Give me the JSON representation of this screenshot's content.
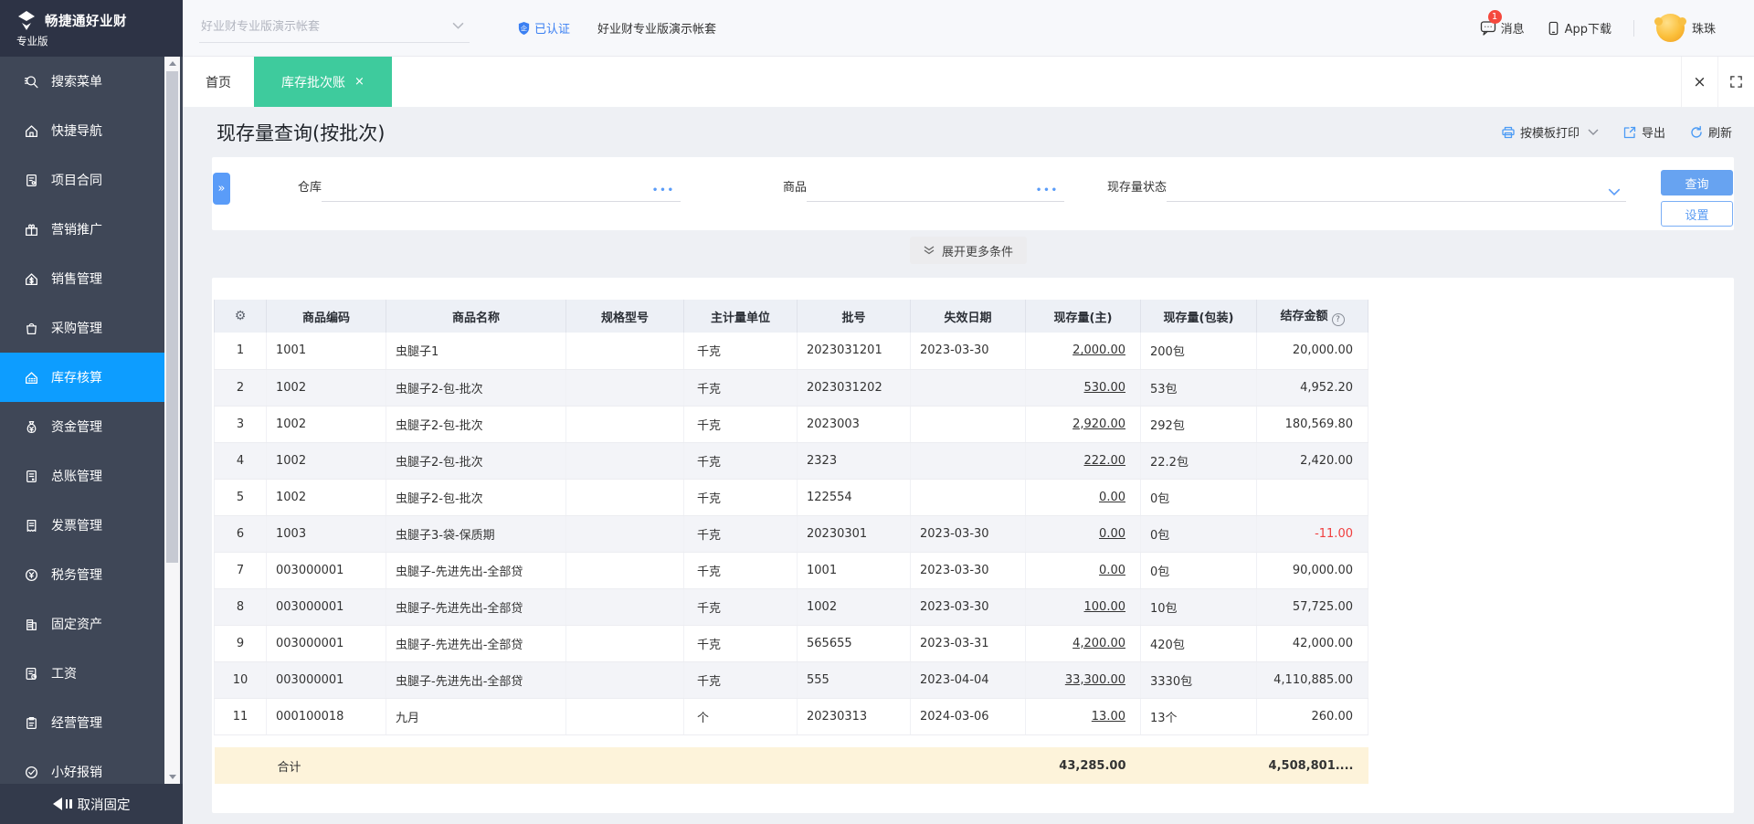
{
  "app": {
    "logo_title": "畅捷通好业财",
    "logo_subtitle": "专业版",
    "unpin_label": "取消固定"
  },
  "glyphs": {
    "close": "×",
    "expand_collapse": "»",
    "more_dots": "•••",
    "gear": "⚙",
    "refresh": "↻"
  },
  "topbar": {
    "account_selector": "好业财专业版演示帐套",
    "certified_label": "已认证",
    "account_name": "好业财专业版演示帐套",
    "messages_label": "消息",
    "messages_badge": "1",
    "app_download_label": "App下载",
    "username": "珠珠"
  },
  "tabs": {
    "home_label": "首页",
    "active_label": "库存批次账"
  },
  "page": {
    "title": "现存量查询(按批次)",
    "print_label": "按模板打印",
    "export_label": "导出",
    "refresh_label": "刷新"
  },
  "filters": {
    "warehouse_label": "仓库",
    "product_label": "商品",
    "stock_status_label": "现存量状态",
    "expand_more_label": "展开更多条件",
    "query_label": "查询",
    "settings_label": "设置"
  },
  "sidebar": {
    "items": [
      {
        "label": "搜索菜单",
        "icon": "search-icon",
        "active": false
      },
      {
        "label": "快捷导航",
        "icon": "home-icon",
        "active": false
      },
      {
        "label": "项目合同",
        "icon": "contract-icon",
        "active": false
      },
      {
        "label": "营销推广",
        "icon": "gift-icon",
        "active": false
      },
      {
        "label": "销售管理",
        "icon": "sales-icon",
        "active": false
      },
      {
        "label": "采购管理",
        "icon": "purchase-bag-icon",
        "active": false
      },
      {
        "label": "库存核算",
        "icon": "warehouse-icon",
        "active": true
      },
      {
        "label": "资金管理",
        "icon": "money-bag-icon",
        "active": false
      },
      {
        "label": "总账管理",
        "icon": "ledger-icon",
        "active": false
      },
      {
        "label": "发票管理",
        "icon": "invoice-icon",
        "active": false
      },
      {
        "label": "税务管理",
        "icon": "tax-icon",
        "active": false
      },
      {
        "label": "固定资产",
        "icon": "building-icon",
        "active": false
      },
      {
        "label": "工资",
        "icon": "salary-icon",
        "active": false
      },
      {
        "label": "经营管理",
        "icon": "clipboard-icon",
        "active": false
      },
      {
        "label": "小好报销",
        "icon": "reimburse-icon",
        "active": false
      }
    ]
  },
  "table": {
    "columns": [
      {
        "label": "商品编码",
        "help": false
      },
      {
        "label": "商品名称",
        "help": false
      },
      {
        "label": "规格型号",
        "help": false
      },
      {
        "label": "主计量单位",
        "help": false
      },
      {
        "label": "批号",
        "help": false
      },
      {
        "label": "失效日期",
        "help": false
      },
      {
        "label": "现存量(主)",
        "help": false
      },
      {
        "label": "现存量(包装)",
        "help": false
      },
      {
        "label": "结存金额",
        "help": true
      }
    ],
    "rows": [
      {
        "num": "1",
        "code": "1001",
        "name": "虫腿子1",
        "spec": "",
        "unit": "千克",
        "batch": "2023031201",
        "expiry": "2023-03-30",
        "qty_main": "2,000.00",
        "qty_pkg": "200包",
        "amount": "20,000.00",
        "negative": false
      },
      {
        "num": "2",
        "code": "1002",
        "name": "虫腿子2-包-批次",
        "spec": "",
        "unit": "千克",
        "batch": "2023031202",
        "expiry": "",
        "qty_main": "530.00",
        "qty_pkg": "53包",
        "amount": "4,952.20",
        "negative": false
      },
      {
        "num": "3",
        "code": "1002",
        "name": "虫腿子2-包-批次",
        "spec": "",
        "unit": "千克",
        "batch": "2023003",
        "expiry": "",
        "qty_main": "2,920.00",
        "qty_pkg": "292包",
        "amount": "180,569.80",
        "negative": false
      },
      {
        "num": "4",
        "code": "1002",
        "name": "虫腿子2-包-批次",
        "spec": "",
        "unit": "千克",
        "batch": "2323",
        "expiry": "",
        "qty_main": "222.00",
        "qty_pkg": "22.2包",
        "amount": "2,420.00",
        "negative": false
      },
      {
        "num": "5",
        "code": "1002",
        "name": "虫腿子2-包-批次",
        "spec": "",
        "unit": "千克",
        "batch": "122554",
        "expiry": "",
        "qty_main": "0.00",
        "qty_pkg": "0包",
        "amount": "",
        "negative": false
      },
      {
        "num": "6",
        "code": "1003",
        "name": "虫腿子3-袋-保质期",
        "spec": "",
        "unit": "千克",
        "batch": "20230301",
        "expiry": "2023-03-30",
        "qty_main": "0.00",
        "qty_pkg": "0包",
        "amount": "-11.00",
        "negative": true
      },
      {
        "num": "7",
        "code": "003000001",
        "name": "虫腿子-先进先出-全部贷",
        "spec": "",
        "unit": "千克",
        "batch": "1001",
        "expiry": "2023-03-30",
        "qty_main": "0.00",
        "qty_pkg": "0包",
        "amount": "90,000.00",
        "negative": false
      },
      {
        "num": "8",
        "code": "003000001",
        "name": "虫腿子-先进先出-全部贷",
        "spec": "",
        "unit": "千克",
        "batch": "1002",
        "expiry": "2023-03-30",
        "qty_main": "100.00",
        "qty_pkg": "10包",
        "amount": "57,725.00",
        "negative": false
      },
      {
        "num": "9",
        "code": "003000001",
        "name": "虫腿子-先进先出-全部贷",
        "spec": "",
        "unit": "千克",
        "batch": "565655",
        "expiry": "2023-03-31",
        "qty_main": "4,200.00",
        "qty_pkg": "420包",
        "amount": "42,000.00",
        "negative": false
      },
      {
        "num": "10",
        "code": "003000001",
        "name": "虫腿子-先进先出-全部贷",
        "spec": "",
        "unit": "千克",
        "batch": "555",
        "expiry": "2023-04-04",
        "qty_main": "33,300.00",
        "qty_pkg": "3330包",
        "amount": "4,110,885.00",
        "negative": false
      },
      {
        "num": "11",
        "code": "000100018",
        "name": "九月",
        "spec": "",
        "unit": "个",
        "batch": "20230313",
        "expiry": "2024-03-06",
        "qty_main": "13.00",
        "qty_pkg": "13个",
        "amount": "260.00",
        "negative": false
      }
    ],
    "total": {
      "label": "合计",
      "qty_main": "43,285.00",
      "amount": "4,508,801...."
    }
  }
}
